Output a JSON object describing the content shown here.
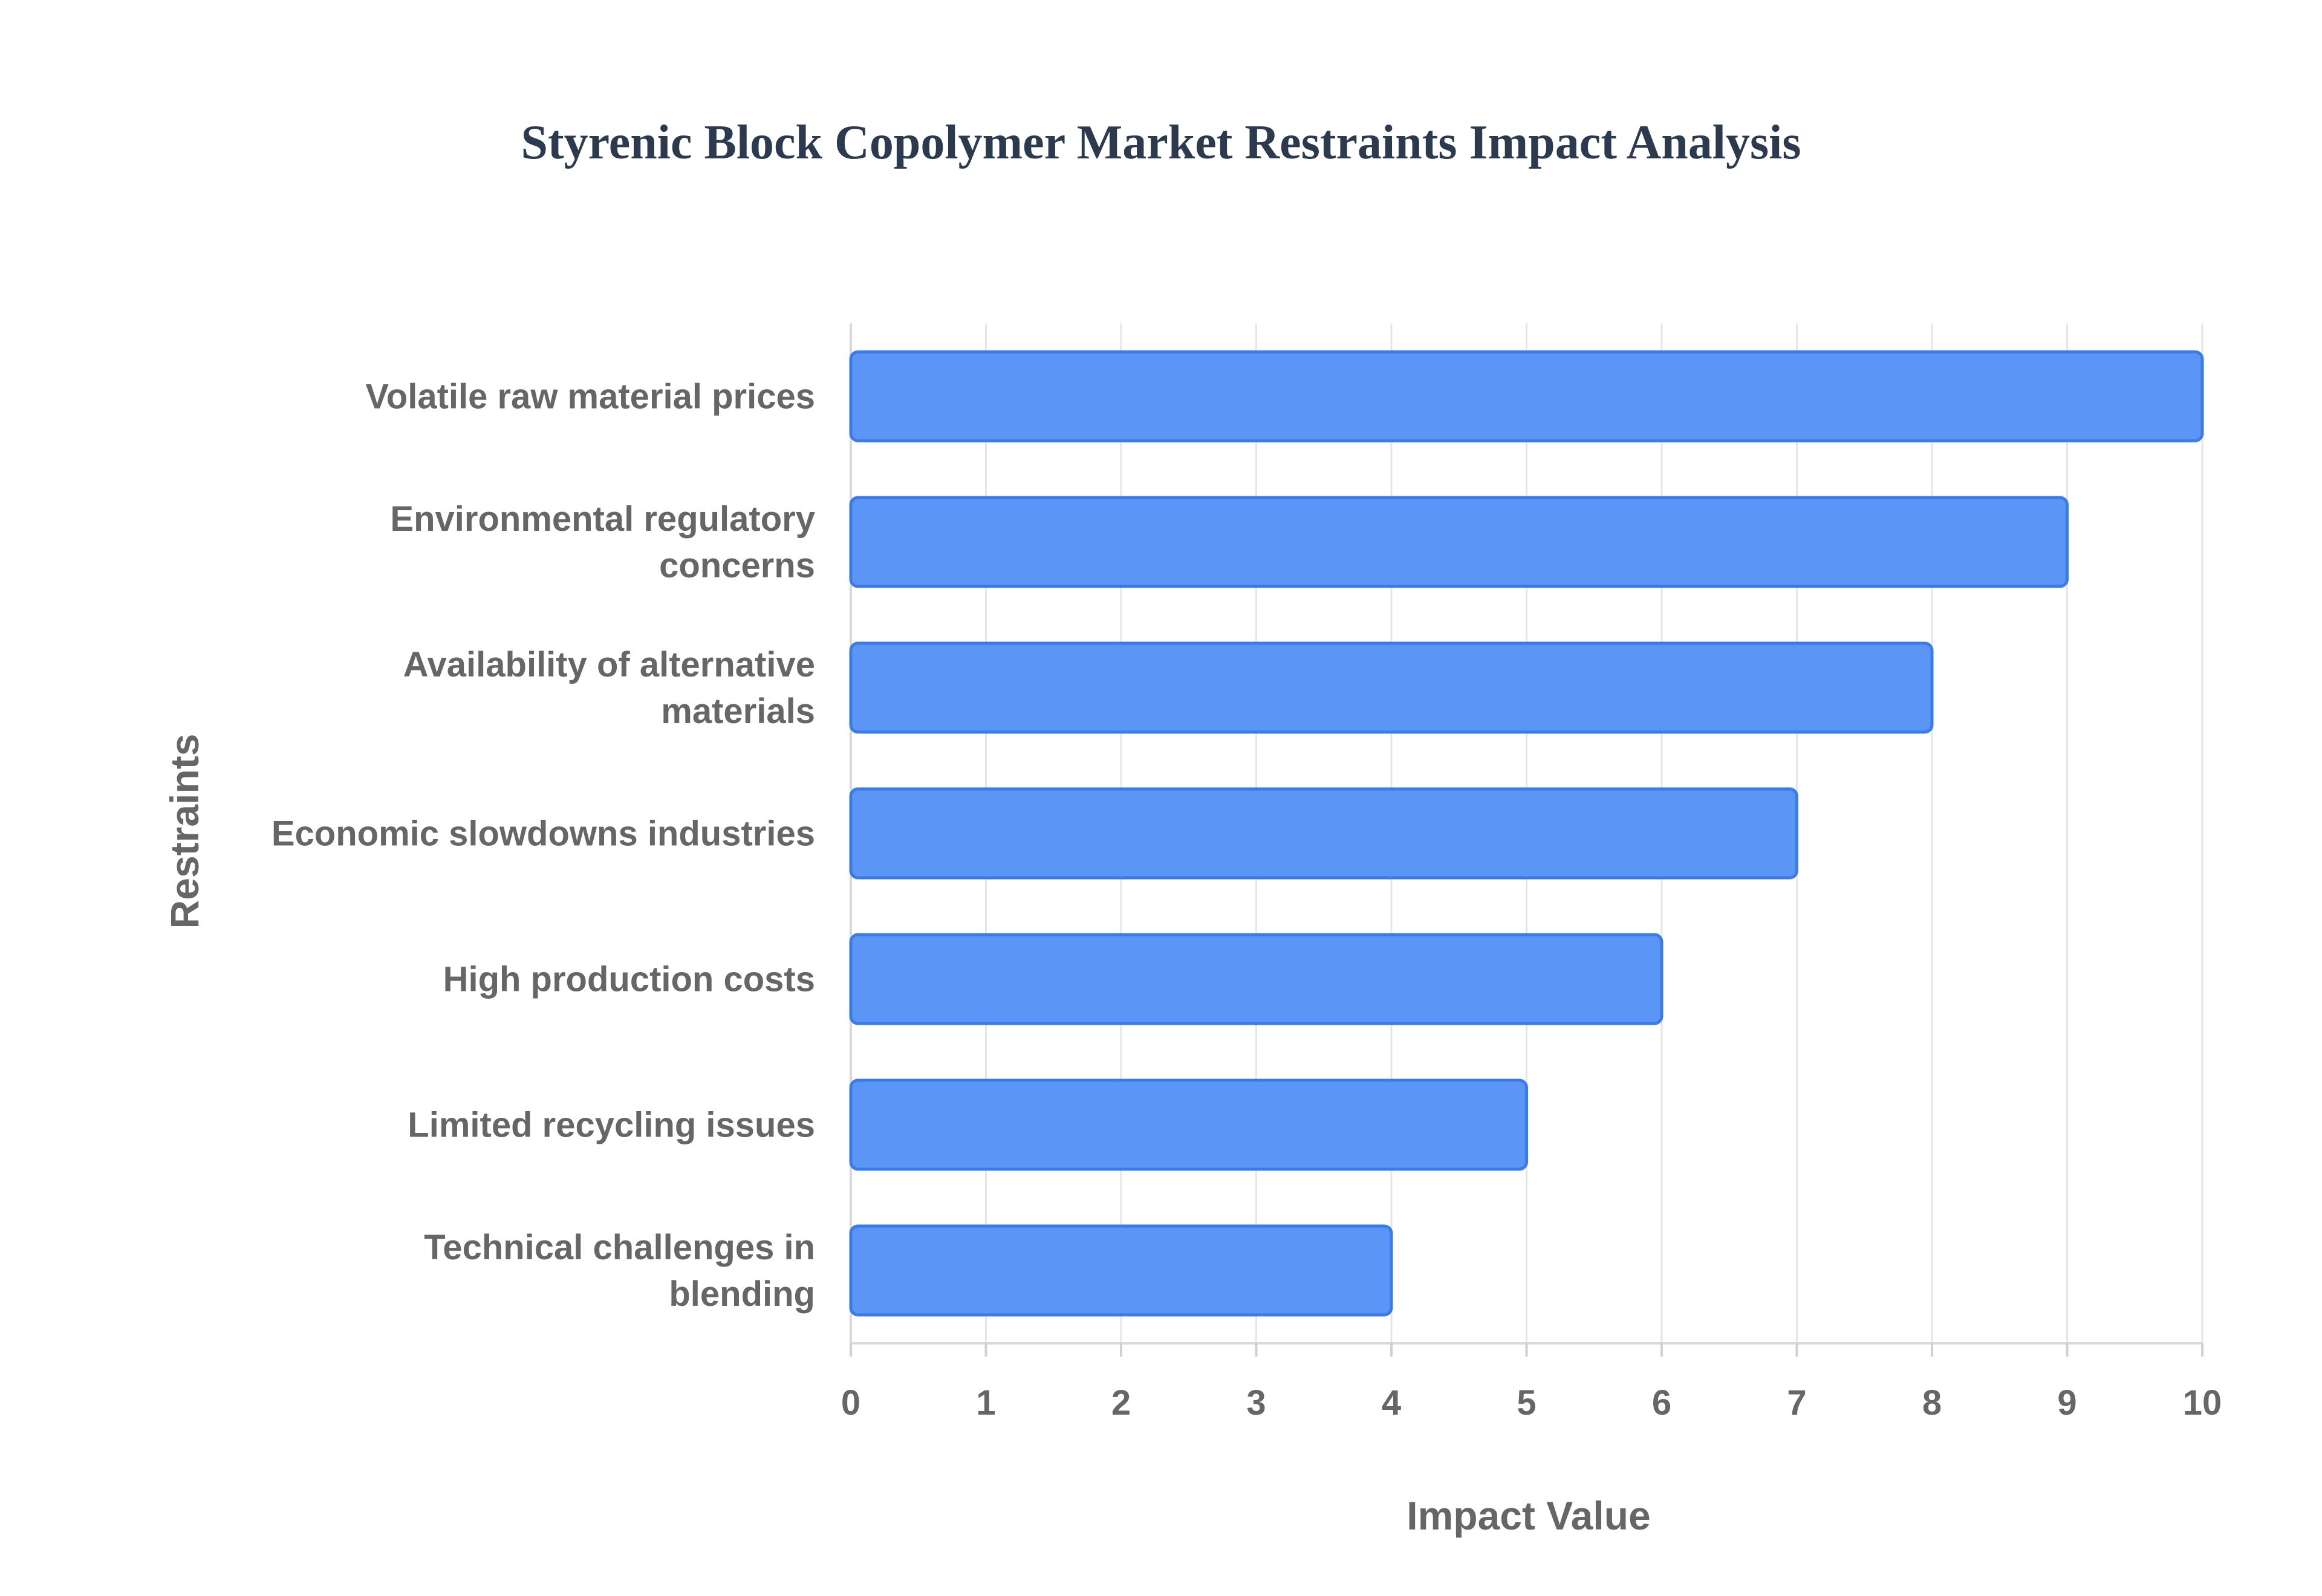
{
  "chart_data": {
    "type": "bar",
    "orientation": "horizontal",
    "title": "Styrenic Block Copolymer Market Restraints Impact Analysis",
    "xlabel": "Impact Value",
    "ylabel": "Restraints",
    "categories": [
      [
        "Volatile raw material prices"
      ],
      [
        "Environmental regulatory",
        "concerns"
      ],
      [
        "Availability of alternative",
        "materials"
      ],
      [
        "Economic slowdowns industries"
      ],
      [
        "High production costs"
      ],
      [
        "Limited recycling issues"
      ],
      [
        "Technical challenges in",
        "blending"
      ]
    ],
    "values": [
      10,
      9,
      8,
      7,
      6,
      5,
      4
    ],
    "xlim": [
      0,
      10
    ],
    "xticks": [
      "0",
      "1",
      "2",
      "3",
      "4",
      "5",
      "6",
      "7",
      "8",
      "9",
      "10"
    ],
    "grid": true,
    "legend": "none",
    "colors": {
      "bar_fill": "#5b95f5",
      "bar_stroke": "#3a7bea"
    }
  }
}
